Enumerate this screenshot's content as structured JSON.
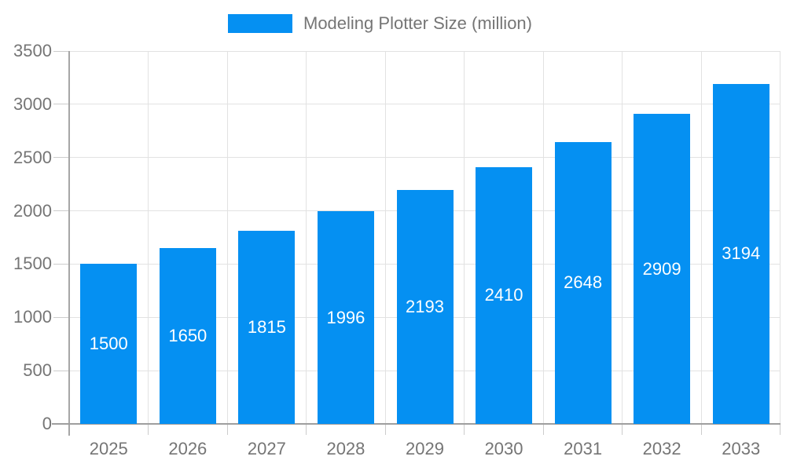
{
  "chart_data": {
    "type": "bar",
    "title": "Modeling Plotter Size (million)",
    "legend_position": "top",
    "categories": [
      "2025",
      "2026",
      "2027",
      "2028",
      "2029",
      "2030",
      "2031",
      "2032",
      "2033"
    ],
    "series": [
      {
        "name": "Modeling Plotter Size (million)",
        "values": [
          1500,
          1650,
          1815,
          1996,
          2193,
          2410,
          2648,
          2909,
          3194
        ]
      }
    ],
    "value_labels": [
      "1500",
      "1650",
      "1815",
      "1996",
      "2193",
      "2410",
      "2648",
      "2909",
      "3194"
    ],
    "xlabel": "",
    "ylabel": "",
    "ylim": [
      0,
      3500
    ],
    "yticks": [
      0,
      500,
      1000,
      1500,
      2000,
      2500,
      3000,
      3500
    ],
    "grid": true,
    "colors": {
      "bar": "#0590f2",
      "value_label": "#ffffff",
      "axis_text": "#757575",
      "gridline": "#e2e2e2",
      "tick": "#cccccc",
      "axis_line": "#a6a6a6",
      "baseline": "#9e9e9e",
      "background": "#ffffff"
    }
  },
  "legend": {
    "label": "Modeling Plotter Size (million)"
  }
}
